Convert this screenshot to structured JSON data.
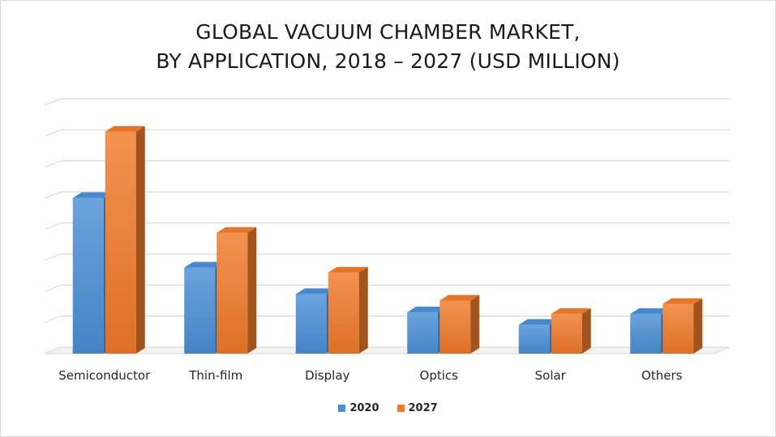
{
  "chart_data": {
    "type": "bar",
    "title_lines": [
      "GLOBAL VACUUM CHAMBER MARKET,",
      "BY APPLICATION, 2018 – 2027 (USD MILLION)"
    ],
    "categories": [
      "Semiconductor",
      "Thin-film",
      "Display",
      "Optics",
      "Solar",
      "Others"
    ],
    "series": [
      {
        "name": "2020",
        "color": "#4a8fd6",
        "values": [
          4.7,
          2.6,
          1.8,
          1.25,
          0.87,
          1.2
        ]
      },
      {
        "name": "2027",
        "color": "#f07a2a",
        "values": [
          6.7,
          3.65,
          2.45,
          1.6,
          1.2,
          1.5
        ]
      }
    ],
    "ylim": [
      0,
      7.5
    ],
    "y_gridlines": 8,
    "y_tick_labels_shown": false,
    "grid": true,
    "legend_position": "bottom",
    "style": "3d-clustered-column"
  }
}
